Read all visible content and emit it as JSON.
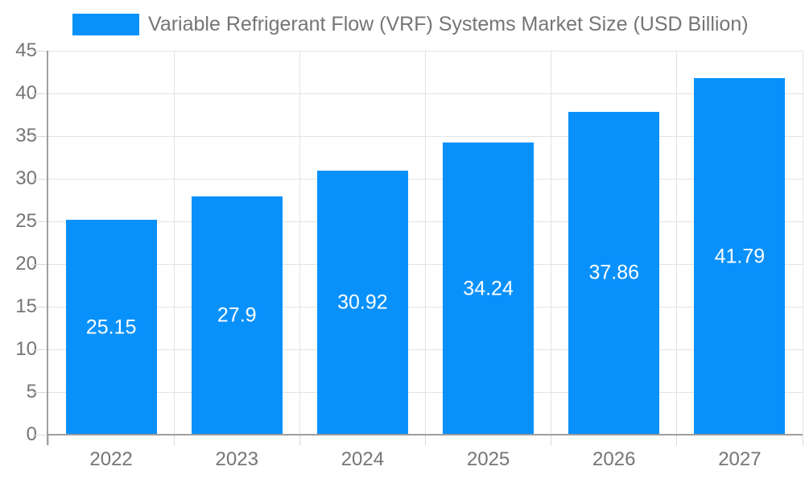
{
  "chart_data": {
    "type": "bar",
    "title": "Variable Refrigerant Flow (VRF) Systems Market Size (USD Billion)",
    "categories": [
      "2022",
      "2023",
      "2024",
      "2025",
      "2026",
      "2027"
    ],
    "values": [
      25.15,
      27.9,
      30.92,
      34.24,
      37.86,
      41.79
    ],
    "value_labels": [
      "25.15",
      "27.9",
      "30.92",
      "34.24",
      "37.86",
      "41.79"
    ],
    "xlabel": "",
    "ylabel": "",
    "ylim": [
      0,
      45
    ],
    "yticks": [
      0,
      5,
      10,
      15,
      20,
      25,
      30,
      35,
      40,
      45
    ],
    "grid": true,
    "legend_position": "top",
    "colors": {
      "bar": "#0991FB",
      "bar_label_text": "#FFFFFF",
      "axis_text": "#757575",
      "legend_text": "#757575",
      "gridline": "#E3E3E3",
      "tick": "#D9D9D9",
      "axis_line": "#9E9E9E",
      "background": "#FFFFFF"
    }
  }
}
